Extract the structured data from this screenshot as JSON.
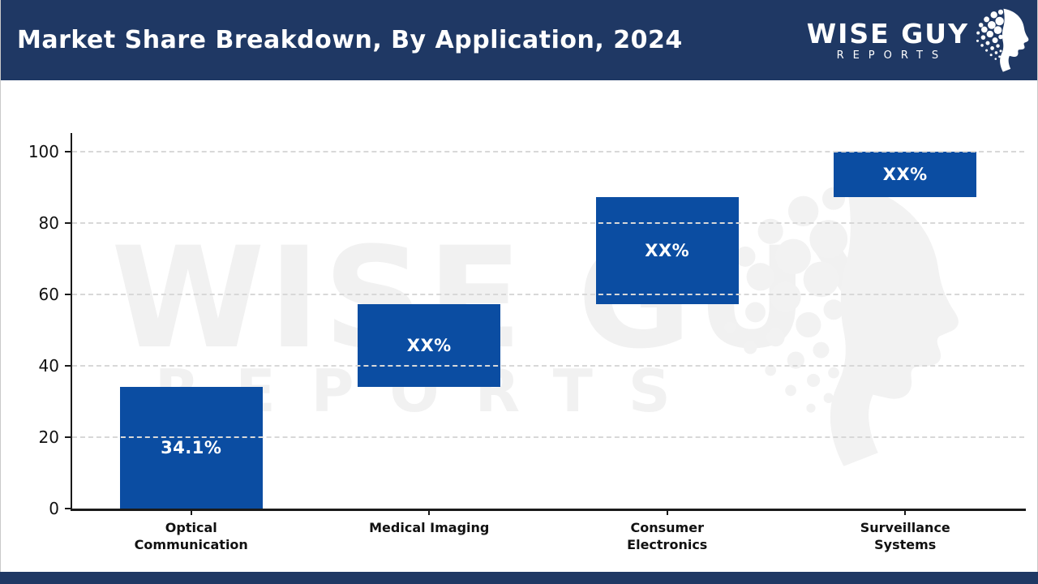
{
  "header": {
    "title": "Market Share Breakdown, By Application, 2024",
    "bg_color": "#1F3864",
    "logo": {
      "wordmark": "WISE GUY",
      "subtext": "REPORTS"
    }
  },
  "watermark": {
    "wordmark": "WISE GUY",
    "subtext": "REPORTS"
  },
  "chart_data": {
    "type": "bar",
    "subtype": "floating-waterfall",
    "title": "Market Share Breakdown, By Application, 2024",
    "categories": [
      "Optical Communication",
      "Medical Imaging",
      "Consumer Electronics",
      "Surveillance Systems"
    ],
    "series": [
      {
        "name": "Market share (%)",
        "segments": [
          {
            "category": "Optical Communication",
            "start": 0,
            "end": 34.1,
            "value": 34.1,
            "label": "34.1%"
          },
          {
            "category": "Medical Imaging",
            "start": 34.1,
            "end": 57.3,
            "value": 23.2,
            "label": "XX%"
          },
          {
            "category": "Consumer Electronics",
            "start": 57.3,
            "end": 87.3,
            "value": 30.0,
            "label": "XX%"
          },
          {
            "category": "Surveillance Systems",
            "start": 87.3,
            "end": 100.0,
            "value": 12.7,
            "label": "XX%"
          }
        ]
      }
    ],
    "ylim": [
      0,
      105
    ],
    "yticks": [
      0,
      20,
      40,
      60,
      80,
      100
    ],
    "grid": {
      "horizontal": true,
      "style": "dashed",
      "color": "#d8d8d8",
      "drawn_over_bars": true
    },
    "legend": "none",
    "xlabel": "",
    "ylabel": "",
    "bar_color": "#0B4DA2",
    "bar_label_color": "#FFFFFF",
    "axis_color": "#1a1a1a"
  },
  "footer": {
    "bg_color": "#1F3864"
  }
}
